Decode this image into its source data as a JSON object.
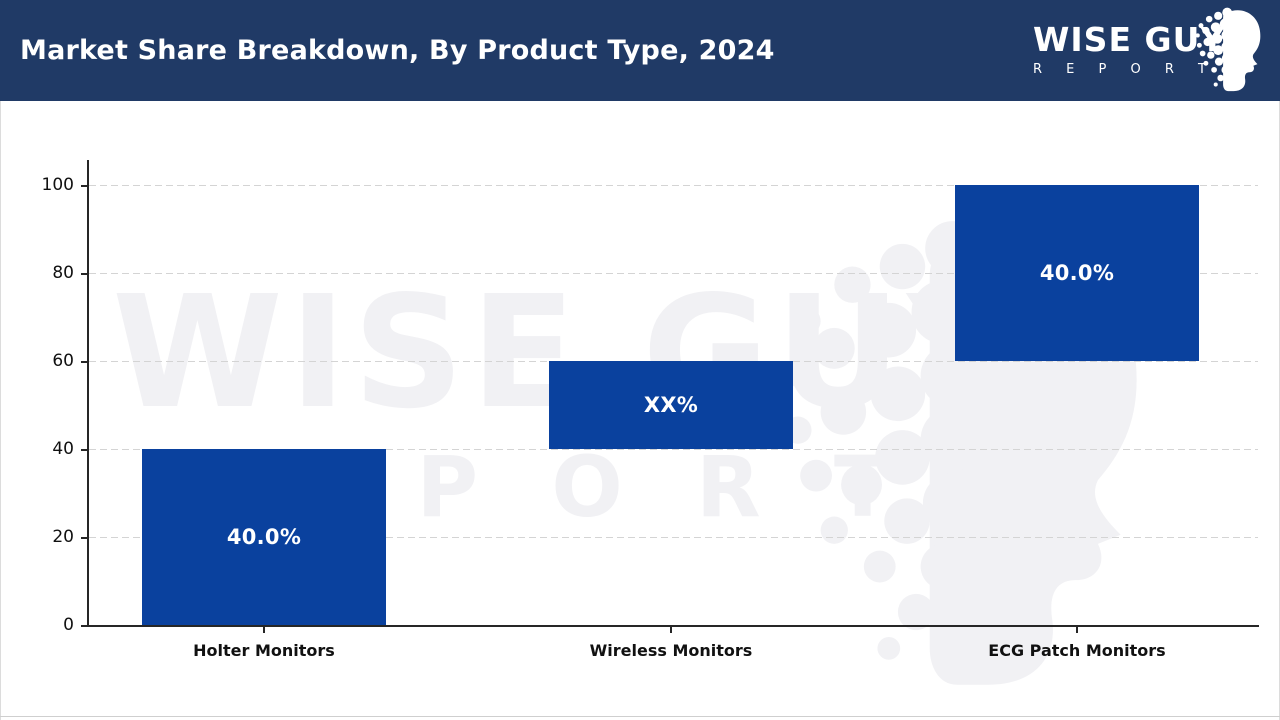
{
  "header": {
    "title": "Market Share Breakdown, By Product Type, 2024",
    "logo": {
      "line1": "WISE GUY",
      "line2": "R E P O R T S"
    },
    "bg_color": "#203a66"
  },
  "watermark": {
    "line1": "WISE GUY",
    "line2": "R E P O R T S"
  },
  "chart_data": {
    "type": "bar",
    "subtype": "floating-waterfall",
    "title": "Market Share Breakdown, By Product Type, 2024",
    "categories": [
      "Holter Monitors",
      "Wireless Monitors",
      "ECG Patch Monitors"
    ],
    "segments": [
      {
        "category": "Holter Monitors",
        "start": 0,
        "end": 40,
        "label": "40.0%"
      },
      {
        "category": "Wireless Monitors",
        "start": 40,
        "end": 60,
        "label": "XX%"
      },
      {
        "category": "ECG Patch Monitors",
        "start": 60,
        "end": 100,
        "label": "40.0%"
      }
    ],
    "yticks": [
      0,
      20,
      40,
      60,
      80,
      100
    ],
    "ylim": [
      0,
      106
    ],
    "xlabel": "",
    "ylabel": "",
    "grid": "horizontal-dashed",
    "legend": "none",
    "bar_color": "#0a419e",
    "bar_label_color": "#ffffff",
    "axis_color": "#262626",
    "gridline_color": "#d4d4d4"
  }
}
